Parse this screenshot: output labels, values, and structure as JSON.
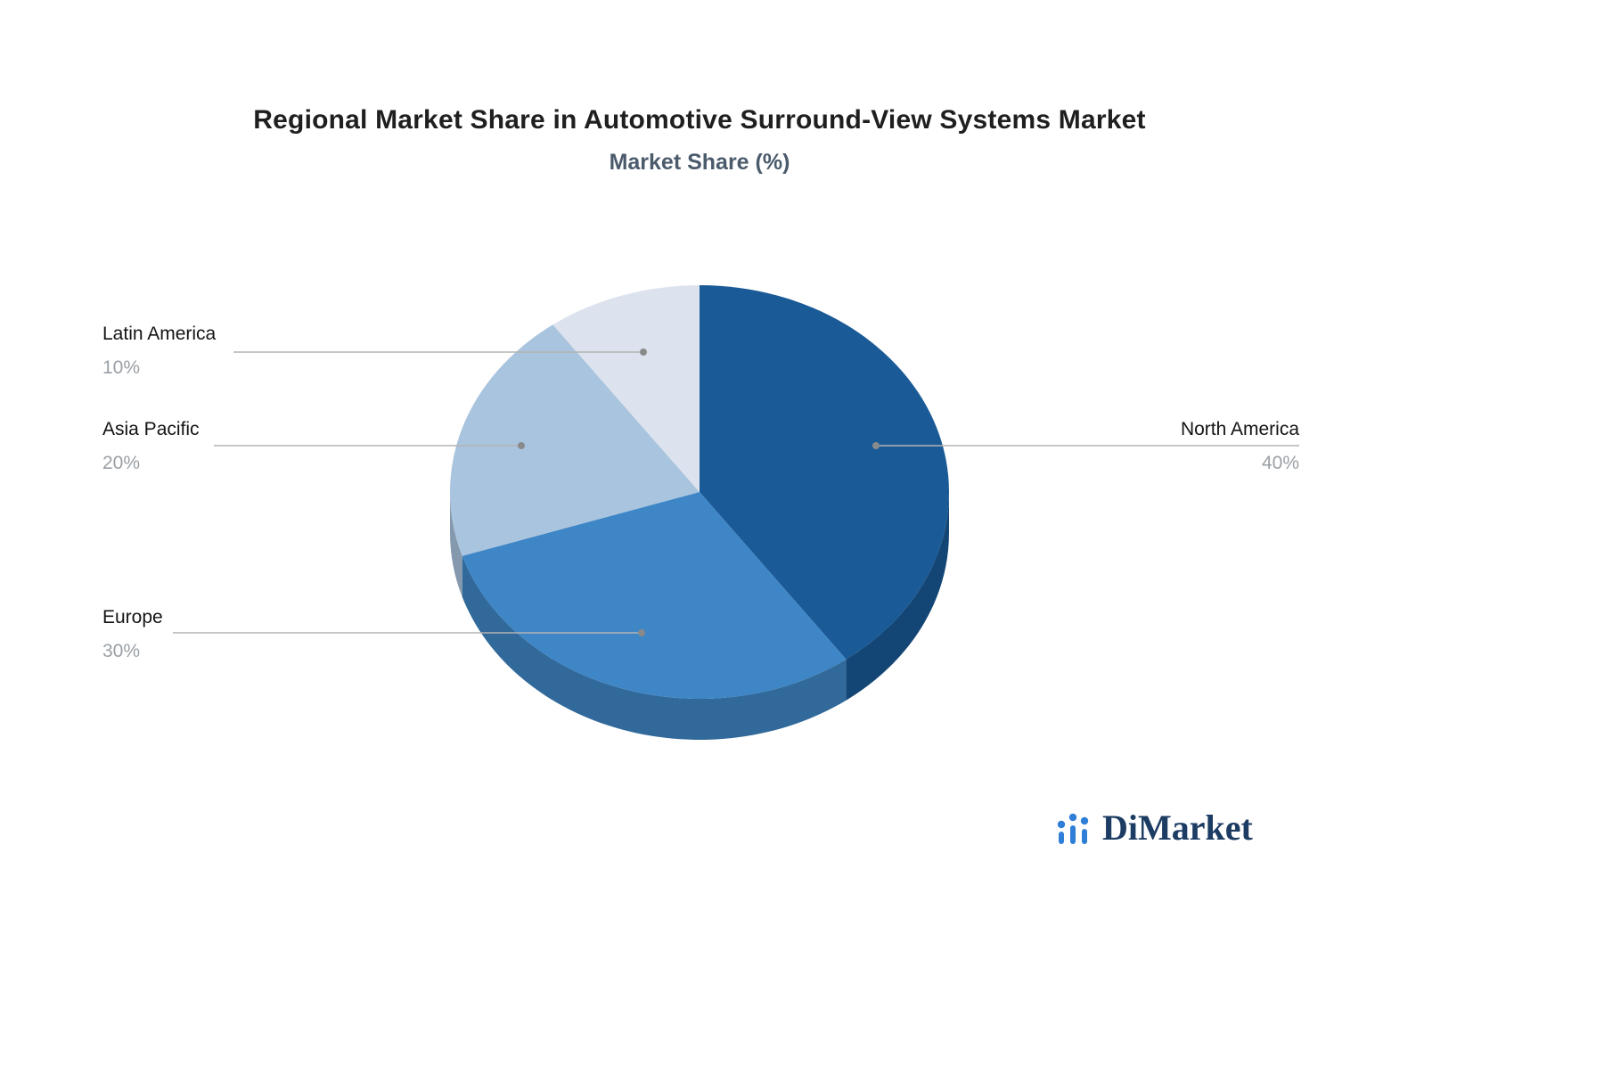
{
  "title": "Regional Market Share in Automotive Surround-View Systems Market",
  "subtitle": "Market Share (%)",
  "brand": {
    "name": "DiMarket"
  },
  "chart_data": {
    "type": "pie",
    "title": "Regional Market Share in Automotive Surround-View Systems Market",
    "subtitle": "Market Share (%)",
    "unit": "%",
    "style": "3d-pie",
    "start_angle_deg": 0,
    "direction": "clockwise",
    "slices": [
      {
        "label": "North America",
        "value": 40,
        "value_text": "40%",
        "color": "#1a5a96"
      },
      {
        "label": "Europe",
        "value": 30,
        "value_text": "30%",
        "color": "#3e86c6"
      },
      {
        "label": "Asia Pacific",
        "value": 20,
        "value_text": "20%",
        "color": "#a9c4de"
      },
      {
        "label": "Latin America",
        "value": 10,
        "value_text": "10%",
        "color": "#dce3ee"
      }
    ],
    "leader_line_color": "#b3b3b3",
    "leader_dot_color": "#8a8a8a"
  }
}
